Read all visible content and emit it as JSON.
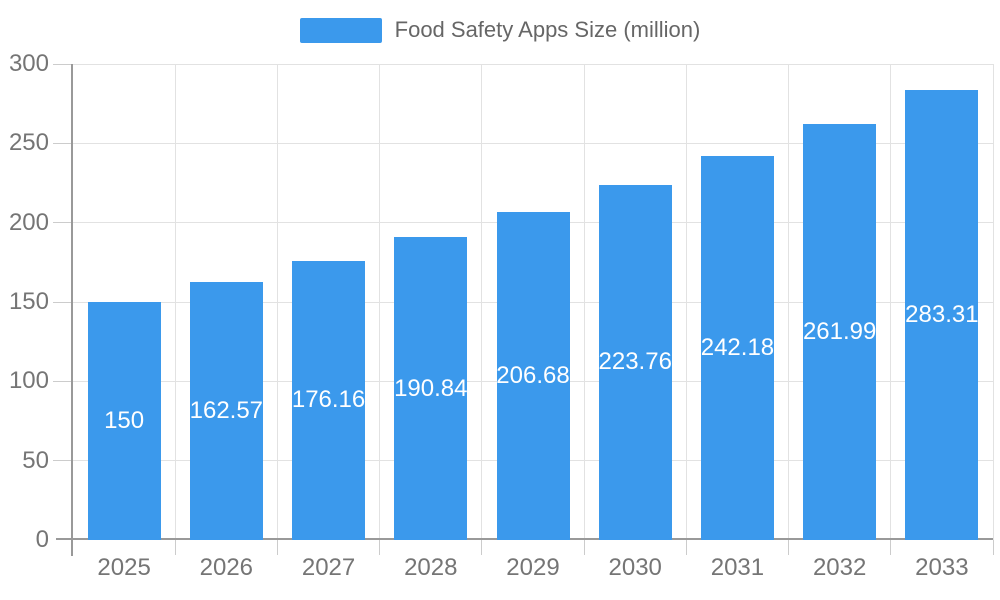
{
  "legend": {
    "label": "Food Safety Apps Size (million)"
  },
  "chart_data": {
    "type": "bar",
    "title": "Food Safety Apps Size (million)",
    "legend_entries": [
      "Food Safety Apps Size (million)"
    ],
    "legend_position": "top-center",
    "categories": [
      "2025",
      "2026",
      "2027",
      "2028",
      "2029",
      "2030",
      "2031",
      "2032",
      "2033"
    ],
    "values": [
      150,
      162.57,
      176.16,
      190.84,
      206.68,
      223.76,
      242.18,
      261.99,
      283.31
    ],
    "xlabel": "",
    "ylabel": "",
    "ylim": [
      0,
      300
    ],
    "yticks": [
      0,
      50,
      100,
      150,
      200,
      250,
      300
    ],
    "grid": true,
    "value_labels_inside_bars": true,
    "colors": {
      "bar": "#3B99EC",
      "value_label": "#FFFFFF",
      "axis_line": "#999999",
      "tick_mark": "#CCCCCC",
      "gridline": "#E2E2E2",
      "tick_text": "#757575",
      "legend_text": "#666666",
      "background": "#FFFFFF"
    }
  }
}
